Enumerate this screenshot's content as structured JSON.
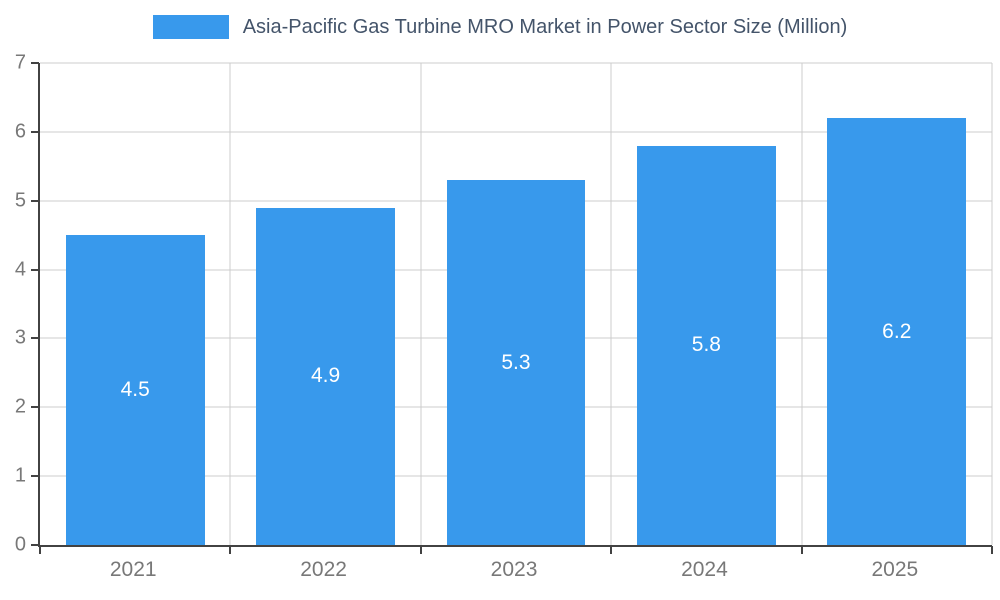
{
  "chart_data": {
    "type": "bar",
    "title": "Asia-Pacific Gas Turbine MRO Market in Power Sector Size (Million)",
    "categories": [
      "2021",
      "2022",
      "2023",
      "2024",
      "2025"
    ],
    "values": [
      4.5,
      4.9,
      5.3,
      5.8,
      6.2
    ],
    "xlabel": "",
    "ylabel": "",
    "ylim": [
      0,
      7
    ],
    "yticks": [
      0,
      1,
      2,
      3,
      4,
      5,
      6,
      7
    ],
    "grid": true,
    "legend_position": "top",
    "bar_color": "#3899ec",
    "value_label_color": "#ffffff",
    "axis_text_color": "#787878",
    "gridline_color": "#cccccc"
  }
}
